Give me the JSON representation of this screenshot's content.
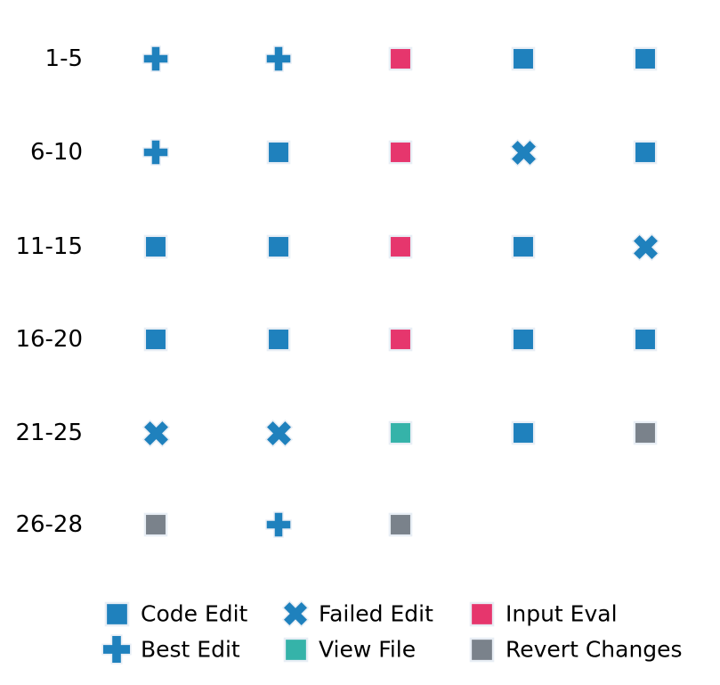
{
  "chart_data": {
    "type": "scatter",
    "title": "",
    "xlabel": "",
    "ylabel": "",
    "grid_on": false,
    "row_labels": [
      "1-5",
      "6-10",
      "11-15",
      "16-20",
      "21-25",
      "26-28"
    ],
    "columns_per_row": 5,
    "grid": [
      [
        "best_edit",
        "best_edit",
        "input_eval",
        "code_edit",
        "code_edit"
      ],
      [
        "best_edit",
        "code_edit",
        "input_eval",
        "failed_edit",
        "code_edit"
      ],
      [
        "code_edit",
        "code_edit",
        "input_eval",
        "code_edit",
        "failed_edit"
      ],
      [
        "code_edit",
        "code_edit",
        "input_eval",
        "code_edit",
        "code_edit"
      ],
      [
        "failed_edit",
        "failed_edit",
        "view_file",
        "code_edit",
        "revert_changes"
      ],
      [
        "revert_changes",
        "best_edit",
        "revert_changes",
        null,
        null
      ]
    ],
    "symbols": {
      "code_edit": {
        "label": "Code Edit",
        "marker": "square",
        "color": "#1f81bd"
      },
      "failed_edit": {
        "label": "Failed Edit",
        "marker": "x",
        "color": "#1f81bd"
      },
      "input_eval": {
        "label": "Input Eval",
        "marker": "square",
        "color": "#e6366d"
      },
      "best_edit": {
        "label": "Best Edit",
        "marker": "plus",
        "color": "#1f81bd"
      },
      "view_file": {
        "label": "View File",
        "marker": "square",
        "color": "#35b3a9"
      },
      "revert_changes": {
        "label": "Revert Changes",
        "marker": "square",
        "color": "#7a828b"
      }
    },
    "legend_order": [
      "code_edit",
      "failed_edit",
      "input_eval",
      "best_edit",
      "view_file",
      "revert_changes"
    ],
    "legend_position": "bottom",
    "colors": {
      "background": "#ffffff",
      "text": "#000000",
      "marker_edge": "#e8eef5"
    }
  }
}
